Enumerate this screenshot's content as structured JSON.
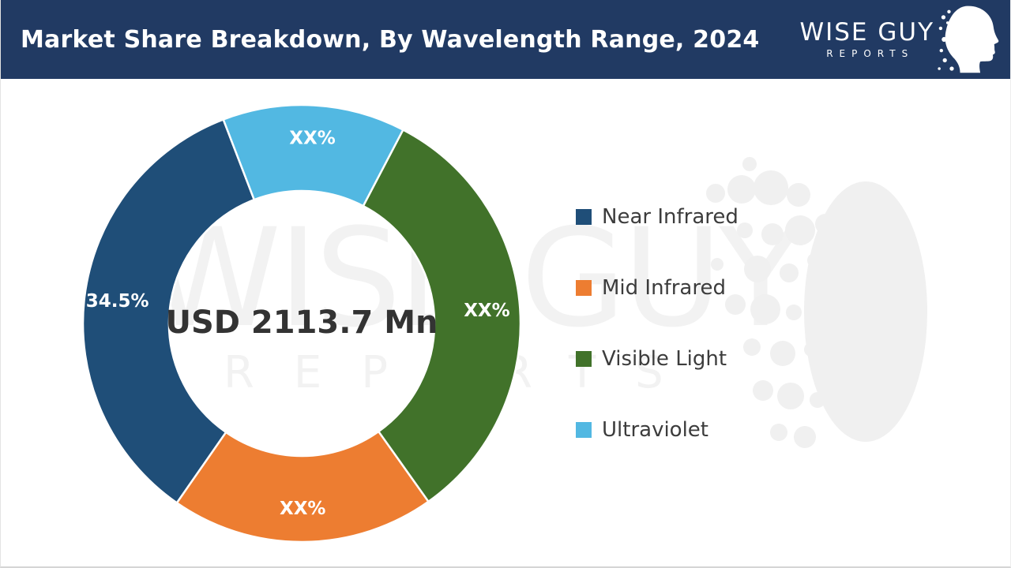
{
  "header": {
    "title": "Market Share Breakdown, By Wavelength Range, 2024",
    "logo": {
      "line1": "WISE GUY",
      "line2": "REPORTS"
    }
  },
  "watermark": {
    "line1": "WISE GUY",
    "line2": "REPORTS"
  },
  "chart_data": {
    "type": "pie",
    "subtype": "donut",
    "title": "Market Share Breakdown, By Wavelength Range, 2024",
    "center_label": "USD 2113.7 Mn",
    "categories": [
      "Near Infrared",
      "Mid Infrared",
      "Visible Light",
      "Ultraviolet"
    ],
    "values_pct": [
      34.5,
      19.5,
      32.5,
      13.5
    ],
    "slice_labels": [
      "34.5%",
      "XX%",
      "XX%",
      "XX%"
    ],
    "colors": [
      "#1f4e78",
      "#ed7d31",
      "#41722a",
      "#52b8e2"
    ],
    "start_angle_deg": 111,
    "direction": "counterclockwise",
    "legend_position": "right",
    "legend_items": [
      "Near Infrared",
      "Mid Infrared",
      "Visible Light",
      "Ultraviolet"
    ]
  }
}
